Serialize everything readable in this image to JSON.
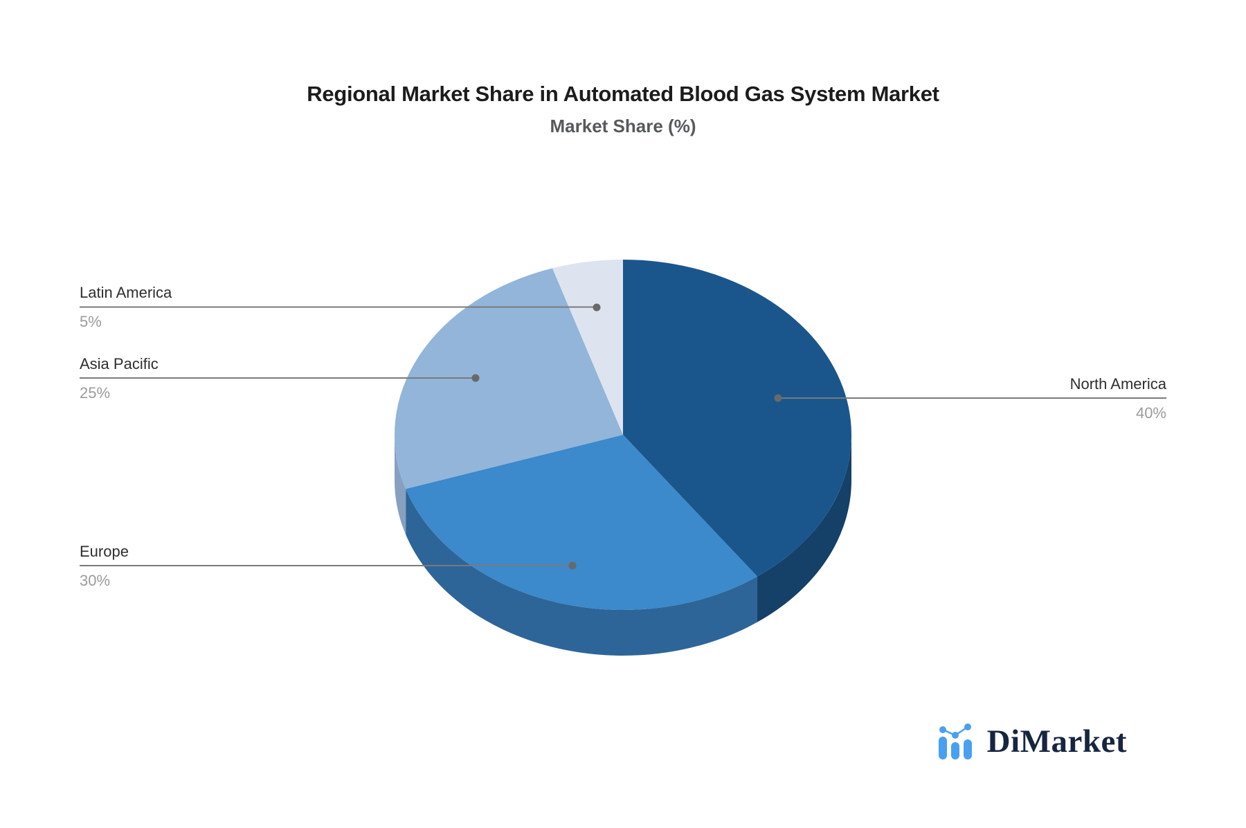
{
  "title": "Regional Market Share in Automated Blood Gas System Market",
  "subtitle": "Market Share (%)",
  "brand": {
    "name": "DiMarket"
  },
  "chart_data": {
    "type": "pie",
    "title": "Regional Market Share in Automated Blood Gas System Market",
    "subtitle": "Market Share (%)",
    "unit": "percent",
    "style": "3d",
    "start_angle": "12-oclock",
    "direction": "clockwise",
    "legend_position": "callout-lines",
    "categories": [
      "North America",
      "Europe",
      "Asia Pacific",
      "Latin America"
    ],
    "values": [
      40,
      30,
      25,
      5
    ],
    "value_labels": [
      "40%",
      "30%",
      "25%",
      "5%"
    ],
    "slice_colors": [
      "#1A568C",
      "#3C89CB",
      "#92B5D9",
      "#DDE4F0"
    ],
    "slice_side_colors": [
      "#154067",
      "#2D6598",
      "#87A0BF",
      "#C5D1E4"
    ],
    "callout_line_color": "#7A7A7A",
    "callout_dot_color": "#696969",
    "label_color": "#2E2E2E",
    "value_color": "#9B9B9B"
  }
}
